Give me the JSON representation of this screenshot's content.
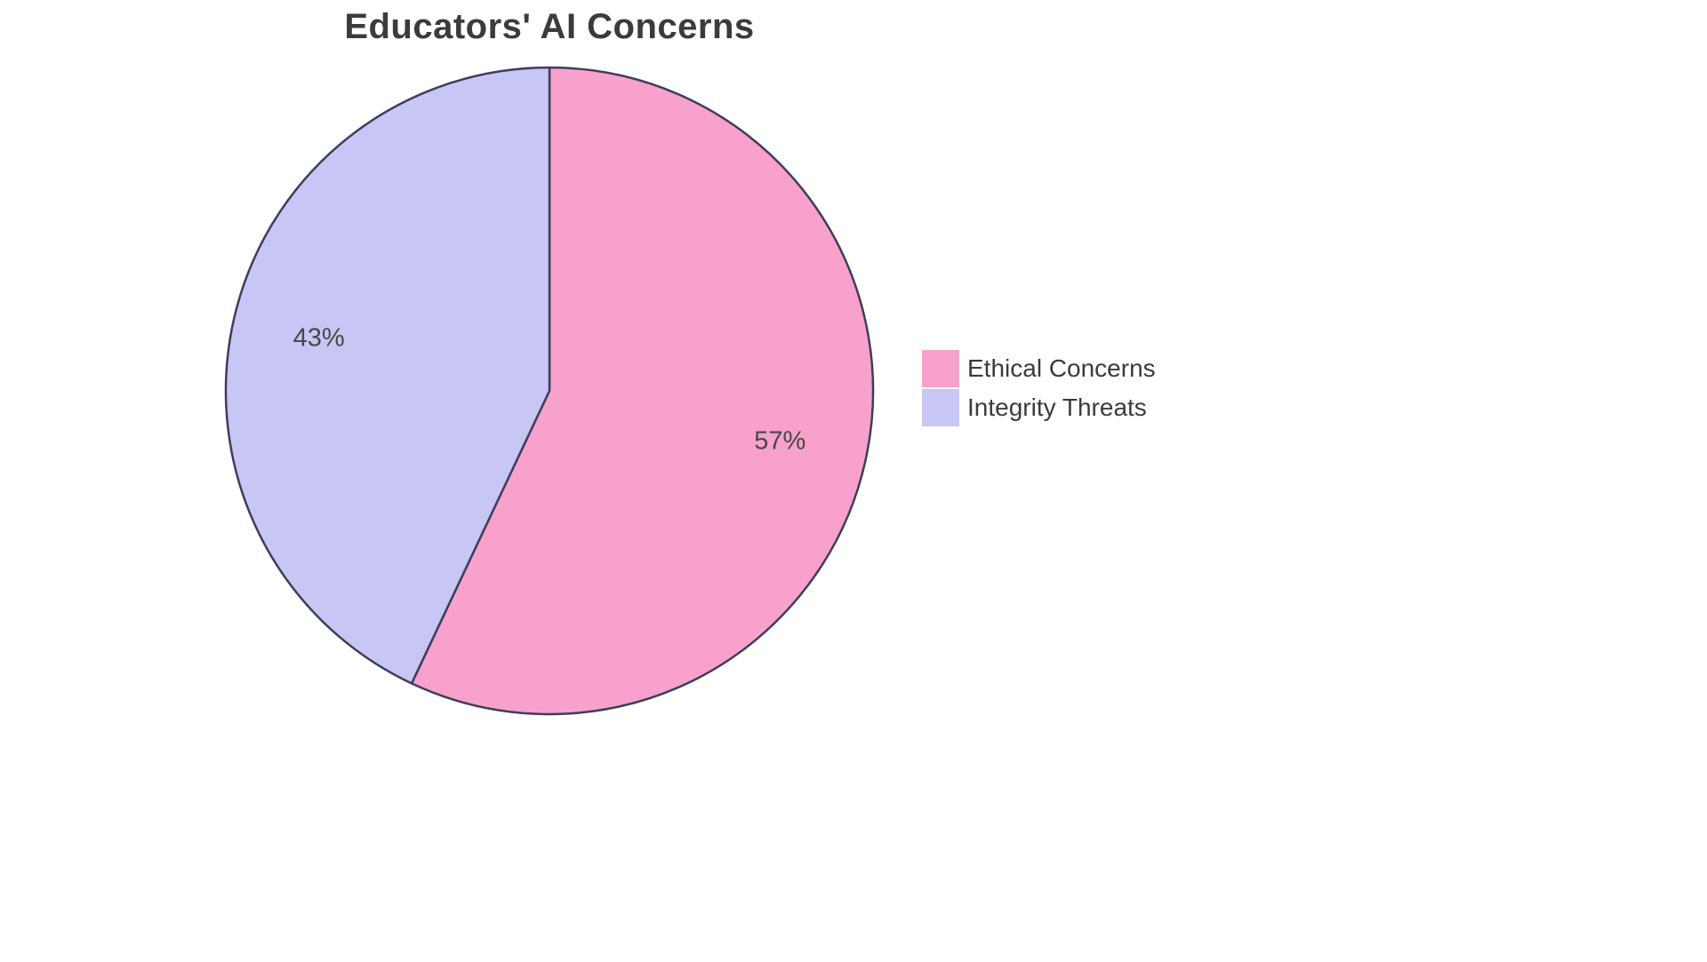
{
  "chart_data": {
    "type": "pie",
    "title": "Educators' AI Concerns",
    "labels": [
      "Ethical Concerns",
      "Integrity Threats"
    ],
    "values": [
      57,
      43
    ],
    "unit": "%",
    "data_labels": [
      "57%",
      "43%"
    ],
    "colors": [
      "#F8A1CC",
      "#C8C6F4"
    ],
    "stroke_color": "#3E3D5C",
    "start_angle_deg": -90,
    "direction": "clockwise",
    "legend_position": "right"
  },
  "legend": {
    "items": [
      {
        "label": "Ethical Concerns",
        "color": "#F8A1CC"
      },
      {
        "label": "Integrity Threats",
        "color": "#C8C6F4"
      }
    ]
  }
}
